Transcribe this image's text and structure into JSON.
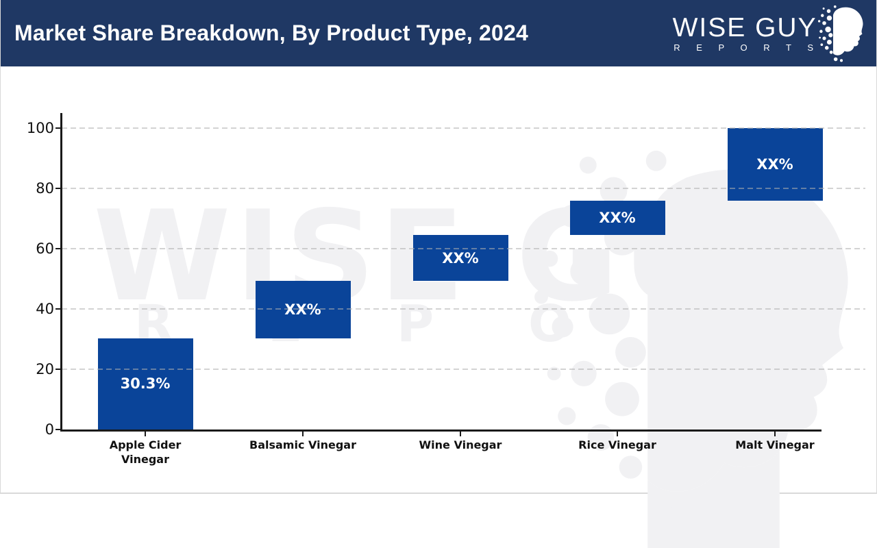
{
  "header": {
    "title": "Market Share Breakdown, By Product Type, 2024",
    "bg_color": "#1F3864",
    "logo": {
      "line1": "WISE GUY",
      "line2": "R E P O R T S"
    }
  },
  "watermark": {
    "line1": "WISE GUY",
    "line2": "R E P O R T S"
  },
  "chart_data": {
    "type": "bar",
    "subtype": "waterfall",
    "title": "Market Share Breakdown, By Product Type, 2024",
    "xlabel": "",
    "ylabel": "",
    "ylim": [
      0,
      105
    ],
    "yticks": [
      0,
      20,
      40,
      60,
      80,
      100
    ],
    "grid": "dashed-horizontal",
    "bar_color": "#0A4499",
    "value_label_color": "#ffffff",
    "categories": [
      "Apple Cider Vinegar",
      "Balsamic Vinegar",
      "Wine Vinegar",
      "Rice Vinegar",
      "Malt Vinegar"
    ],
    "tick_labels": [
      [
        "Apple Cider",
        "Vinegar"
      ],
      [
        "Balsamic Vinegar"
      ],
      [
        "Wine Vinegar"
      ],
      [
        "Rice Vinegar"
      ],
      [
        "Malt Vinegar"
      ]
    ],
    "segments": [
      {
        "category": "Apple Cider Vinegar",
        "start": 0,
        "end": 30.3,
        "size": 30.3,
        "label": "30.3%"
      },
      {
        "category": "Balsamic Vinegar",
        "start": 30.3,
        "end": 49.3,
        "size": 19.0,
        "label": "XX%"
      },
      {
        "category": "Wine Vinegar",
        "start": 49.3,
        "end": 64.5,
        "size": 15.2,
        "label": "XX%"
      },
      {
        "category": "Rice Vinegar",
        "start": 64.5,
        "end": 75.9,
        "size": 11.4,
        "label": "XX%"
      },
      {
        "category": "Malt Vinegar",
        "start": 75.9,
        "end": 100,
        "size": 24.1,
        "label": "XX%"
      }
    ]
  }
}
